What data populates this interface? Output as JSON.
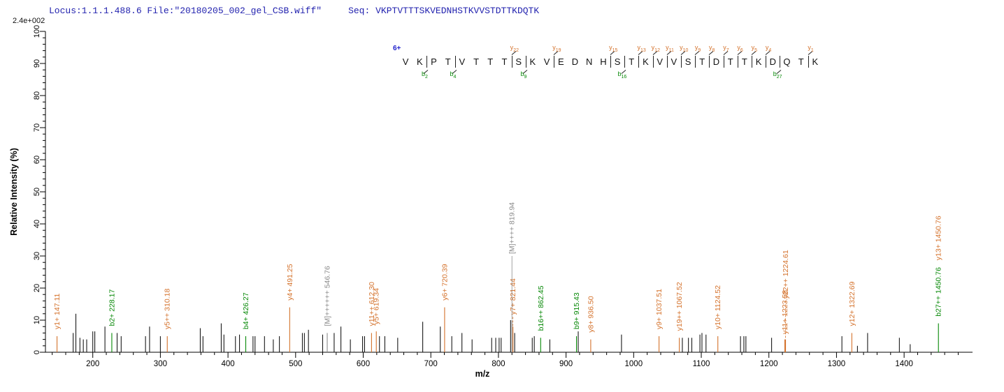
{
  "header": {
    "locus_file": "Locus:1.1.1.488.6 File:\"20180205_002_gel_CSB.wiff\"",
    "seq_label": "Seq:",
    "sequence": "VKPTVTTTSKVEDNHSTKVVSTDTTKDQTK"
  },
  "peptide": {
    "charge_label": "6+",
    "sequence": "VKPTVTTTSKVEDNHSTKVVSTDTTKDQTK",
    "y_breaks": [
      {
        "n": 22,
        "before": 8
      },
      {
        "n": 19,
        "before": 11
      },
      {
        "n": 15,
        "before": 15
      },
      {
        "n": 13,
        "before": 17
      },
      {
        "n": 12,
        "before": 18
      },
      {
        "n": 11,
        "before": 19
      },
      {
        "n": 10,
        "before": 20
      },
      {
        "n": 9,
        "before": 21
      },
      {
        "n": 8,
        "before": 22
      },
      {
        "n": 7,
        "before": 23
      },
      {
        "n": 6,
        "before": 24
      },
      {
        "n": 5,
        "before": 25
      },
      {
        "n": 4,
        "before": 26
      },
      {
        "n": 1,
        "before": 29
      }
    ],
    "b_breaks": [
      {
        "n": 2,
        "after": 1
      },
      {
        "n": 4,
        "after": 3
      },
      {
        "n": 9,
        "after": 8
      },
      {
        "n": 16,
        "after": 15
      },
      {
        "n": 27,
        "after": 26
      }
    ]
  },
  "chart_data": {
    "type": "bar",
    "variant": "ms2-peak-spectrum",
    "title": "",
    "xlabel": "m/z",
    "ylabel": "Relative  Intensity (%)",
    "intensity_scale_label": "2.4e+002",
    "xlim": [
      130,
      1495
    ],
    "ylim": [
      0,
      100
    ],
    "x_major_tick_start": 200,
    "x_major_tick_end": 1400,
    "x_major_tick_step": 100,
    "x_minor_tick_step": 20,
    "y_major_tick_step": 10,
    "y_minor_tick_step": 2,
    "colors": {
      "y_ion": "#d4722c",
      "b_ion": "#068806",
      "precursor": "#8a8a8a",
      "unlabeled": "#1a1a1a",
      "axis": "#000000",
      "header_blue": "#2323af"
    },
    "labeled_peaks": [
      {
        "mz": 147.11,
        "intensity": 5,
        "ion": "y",
        "label": "y1+ 147.11"
      },
      {
        "mz": 310.18,
        "intensity": 5,
        "ion": "y",
        "label": "y5++ 310.18"
      },
      {
        "mz": 491.25,
        "intensity": 14,
        "ion": "y",
        "label": "y4+ 491.25"
      },
      {
        "mz": 612.3,
        "intensity": 6,
        "ion": "y",
        "label": "y11++ 612.30"
      },
      {
        "mz": 619.34,
        "intensity": 6.5,
        "ion": "y",
        "label": "y5+ 619.34"
      },
      {
        "mz": 720.39,
        "intensity": 14,
        "ion": "y",
        "label": "y6+ 720.39"
      },
      {
        "mz": 821.44,
        "intensity": 8,
        "ion": "y",
        "label": "y7+ 821.44",
        "label_base": 11,
        "leader": "dashed"
      },
      {
        "mz": 936.5,
        "intensity": 4,
        "ion": "y",
        "label": "y8+ 936.50"
      },
      {
        "mz": 1037.51,
        "intensity": 5,
        "ion": "y",
        "label": "y9+ 1037.51"
      },
      {
        "mz": 1067.52,
        "intensity": 4.5,
        "ion": "y",
        "label": "y19++ 1067.52"
      },
      {
        "mz": 1124.52,
        "intensity": 5,
        "ion": "y",
        "label": "y10+ 1124.52"
      },
      {
        "mz": 1223.58,
        "intensity": 4,
        "ion": "y",
        "label": "y11+ 1223.58",
        "label_base": 5
      },
      {
        "mz": 1224.61,
        "intensity": 4,
        "ion": "y",
        "label": "y22++ 1224.61",
        "label_base": 16,
        "leader": "dashed"
      },
      {
        "mz": 1322.69,
        "intensity": 6,
        "ion": "y",
        "label": "y12+ 1322.69"
      },
      {
        "mz": 1450.76,
        "intensity": 9,
        "ion": "y",
        "label": "y13+ 1450.76",
        "label_base": 28,
        "no_peak": true
      },
      {
        "mz": 228.17,
        "intensity": 6,
        "ion": "b",
        "label": "b2+ 228.17"
      },
      {
        "mz": 426.27,
        "intensity": 5,
        "ion": "b",
        "label": "b4+ 426.27"
      },
      {
        "mz": 862.45,
        "intensity": 4.5,
        "ion": "b",
        "label": "b16++ 862.45"
      },
      {
        "mz": 915.43,
        "intensity": 5,
        "ion": "b",
        "label": "b9+ 915.43"
      },
      {
        "mz": 1450.76,
        "intensity": 9,
        "ion": "b",
        "label": "b27++ 1450.76"
      },
      {
        "mz": 546.76,
        "intensity": 6,
        "ion": "M",
        "label": "[M]++++++ 546.76"
      },
      {
        "mz": 819.94,
        "intensity": 10,
        "ion": "M",
        "label": "[M]++++ 819.94",
        "label_base": 30,
        "leader": "solid"
      }
    ],
    "unlabeled_peaks": [
      [
        171,
        6
      ],
      [
        175,
        12
      ],
      [
        181,
        4.5
      ],
      [
        186,
        4
      ],
      [
        191,
        4
      ],
      [
        200,
        6.5
      ],
      [
        203,
        6.5
      ],
      [
        218,
        8
      ],
      [
        236,
        6
      ],
      [
        242,
        5
      ],
      [
        278,
        5
      ],
      [
        284,
        8
      ],
      [
        300,
        5
      ],
      [
        359,
        7.5
      ],
      [
        363,
        5
      ],
      [
        390,
        9
      ],
      [
        394,
        5.5
      ],
      [
        411,
        5
      ],
      [
        417,
        5.5
      ],
      [
        437,
        5
      ],
      [
        440,
        5
      ],
      [
        454,
        5
      ],
      [
        467,
        4
      ],
      [
        476,
        5
      ],
      [
        510,
        6
      ],
      [
        513,
        6
      ],
      [
        519,
        7
      ],
      [
        540,
        5.5
      ],
      [
        557,
        6
      ],
      [
        567,
        8
      ],
      [
        581,
        4
      ],
      [
        599,
        5
      ],
      [
        602,
        5
      ],
      [
        624,
        5
      ],
      [
        632,
        5
      ],
      [
        651,
        4.5
      ],
      [
        688,
        9.5
      ],
      [
        714,
        8
      ],
      [
        731,
        5
      ],
      [
        746,
        6
      ],
      [
        761,
        4
      ],
      [
        790,
        4.5
      ],
      [
        796,
        4.5
      ],
      [
        801,
        4.5
      ],
      [
        804,
        4.5
      ],
      [
        818,
        10
      ],
      [
        824,
        6
      ],
      [
        850,
        4.5
      ],
      [
        853,
        5
      ],
      [
        876,
        4
      ],
      [
        918,
        6.5
      ],
      [
        982,
        5.5
      ],
      [
        1072,
        4.5
      ],
      [
        1081,
        4.5
      ],
      [
        1086,
        4.5
      ],
      [
        1098,
        5.5
      ],
      [
        1101,
        6
      ],
      [
        1107,
        5.5
      ],
      [
        1158,
        5
      ],
      [
        1163,
        5
      ],
      [
        1166,
        5
      ],
      [
        1204,
        4.5
      ],
      [
        1308,
        5
      ],
      [
        1331,
        2
      ],
      [
        1346,
        6
      ],
      [
        1393,
        4.5
      ],
      [
        1409,
        2.5
      ]
    ]
  }
}
